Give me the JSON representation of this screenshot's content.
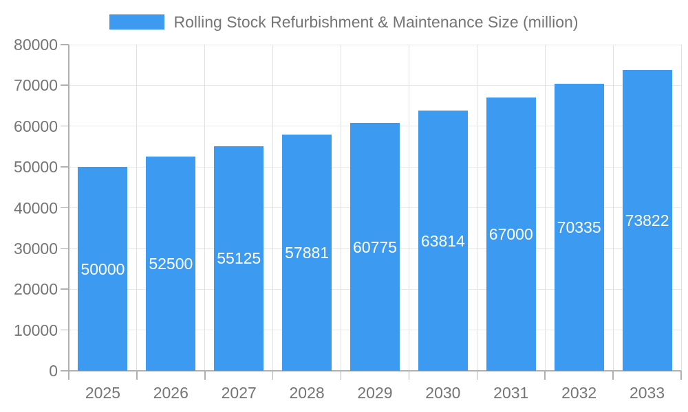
{
  "legend": {
    "label": "Rolling Stock Refurbishment & Maintenance Size (million)"
  },
  "chart_data": {
    "type": "bar",
    "title": "Rolling Stock Refurbishment & Maintenance Size (million)",
    "categories": [
      "2025",
      "2026",
      "2027",
      "2028",
      "2029",
      "2030",
      "2031",
      "2032",
      "2033"
    ],
    "series": [
      {
        "name": "Rolling Stock Refurbishment & Maintenance Size (million)",
        "values": [
          50000,
          52500,
          55125,
          57881,
          60775,
          63814,
          67000,
          70335,
          73822
        ]
      }
    ],
    "xlabel": "",
    "ylabel": "",
    "ylim": [
      0,
      80000
    ],
    "yticks": [
      0,
      10000,
      20000,
      30000,
      40000,
      50000,
      60000,
      70000,
      80000
    ],
    "grid": true,
    "legend_position": "top",
    "bar_label_position": "inside-center",
    "colors": {
      "bar": "#3C9BF0",
      "bar_label": "#FFFFFF",
      "axis": "#B0B0B0",
      "grid_horizontal": "#E8E8E8",
      "grid_vertical": "#E0E0E0",
      "text": "#757575",
      "background": "#FFFFFF"
    }
  }
}
